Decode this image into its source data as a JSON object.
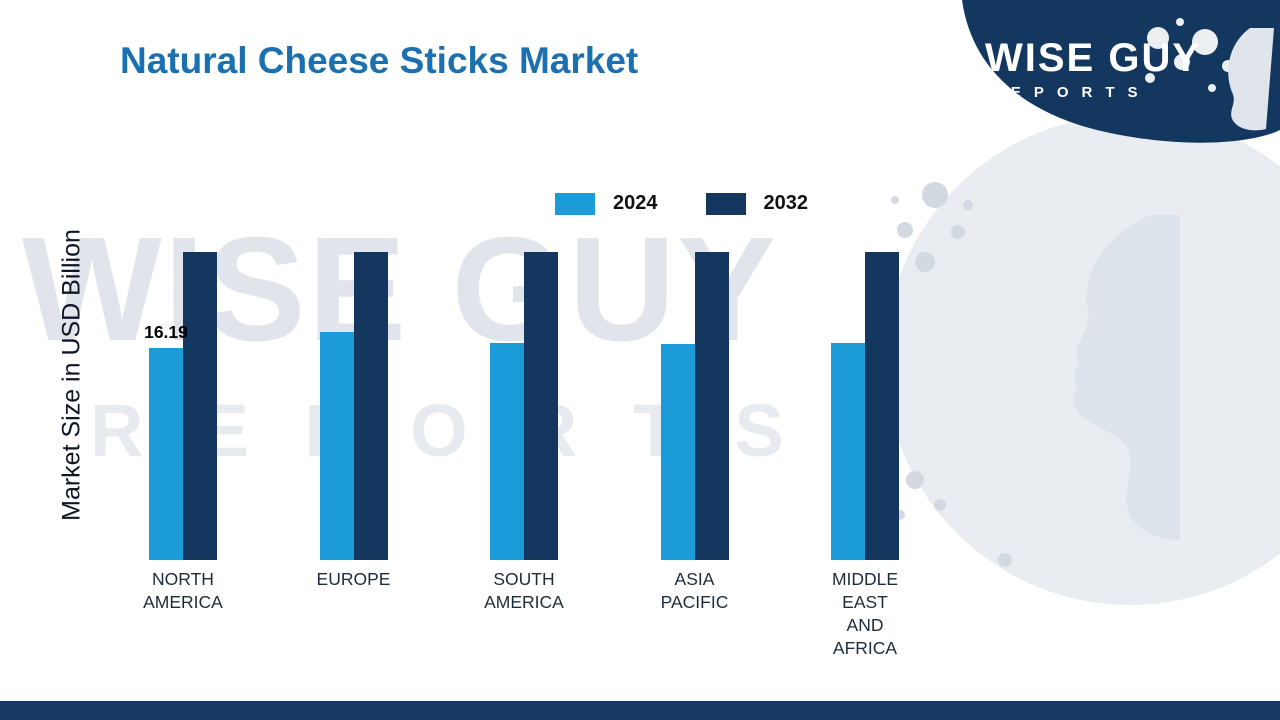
{
  "page": {
    "title": "Natural Cheese Sticks Market",
    "watermark": {
      "line1": "WISE GUY",
      "line2": "REPORTS"
    }
  },
  "logo": {
    "line1": "WISE GUY",
    "line2": "REPORTS"
  },
  "colors": {
    "title_blue": "#1a70b0",
    "bar_2024": "#1b9cd8",
    "bar_2032": "#14375f",
    "footer_navy": "#153962",
    "decor_gray": "#e9edf2"
  },
  "chart_data": {
    "type": "bar",
    "title": "Natural Cheese Sticks Market",
    "xlabel": "",
    "ylabel": "Market Size in USD Billion",
    "ylim": [
      0,
      25
    ],
    "grid": false,
    "legend_position": "top",
    "categories": [
      "NORTH AMERICA",
      "EUROPE",
      "SOUTH AMERICA",
      "ASIA PACIFIC",
      "MIDDLE EAST AND AFRICA"
    ],
    "series": [
      {
        "name": "2024",
        "color": "#1b9cd8",
        "values": [
          16.19,
          17.4,
          16.6,
          16.5,
          16.6
        ]
      },
      {
        "name": "2032",
        "color": "#14375f",
        "values": [
          23.5,
          23.5,
          23.5,
          23.5,
          23.5
        ]
      }
    ],
    "annotations": [
      {
        "series": "2024",
        "category": "NORTH AMERICA",
        "text": "16.19"
      }
    ]
  }
}
